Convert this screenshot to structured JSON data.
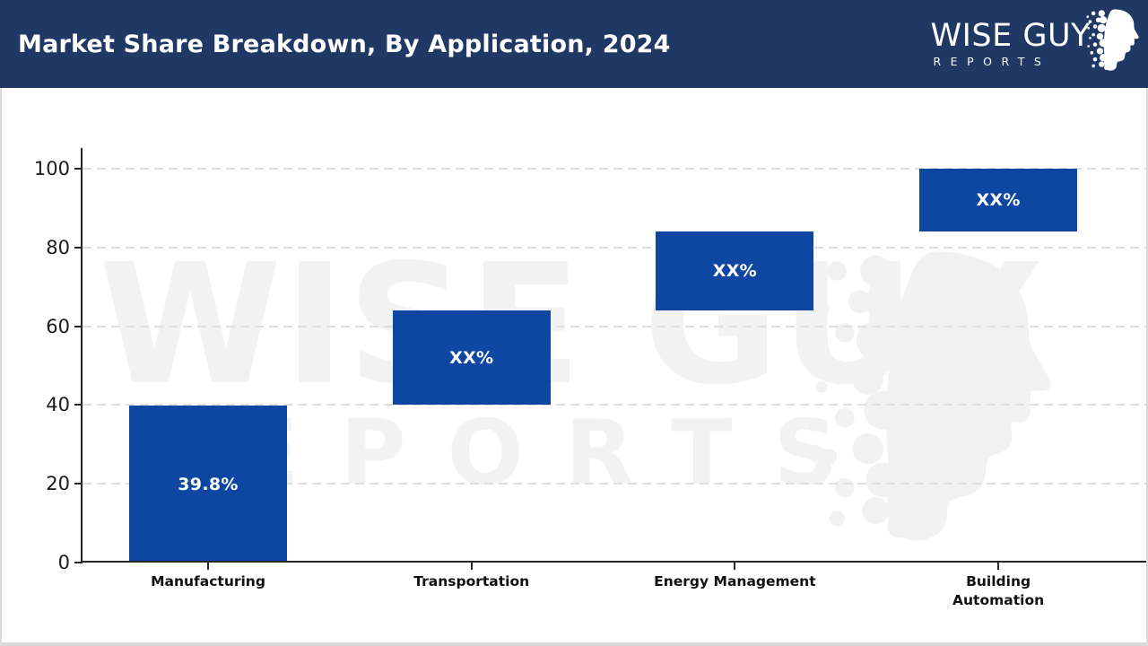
{
  "header": {
    "title": "Market Share Breakdown, By Application, 2024",
    "bg_color": "#1f3864",
    "logo": {
      "name": "WISE GUY",
      "tagline": "REPORTS"
    }
  },
  "watermark": {
    "line1": "WISE GUY",
    "line2": "REPORTS"
  },
  "chart_data": {
    "type": "bar",
    "subtype": "floating-waterfall",
    "title": "Market Share Breakdown, By Application, 2024",
    "categories": [
      "Manufacturing",
      "Transportation",
      "Energy Management",
      "Building Automation"
    ],
    "bars": [
      {
        "category": "Manufacturing",
        "start": 0,
        "end": 39.8,
        "label": "39.8%"
      },
      {
        "category": "Transportation",
        "start": 40,
        "end": 64,
        "label": "XX%"
      },
      {
        "category": "Energy Management",
        "start": 64,
        "end": 84,
        "label": "XX%"
      },
      {
        "category": "Building\nAutomation",
        "start": 84,
        "end": 100,
        "label": "XX%"
      }
    ],
    "y_ticks": [
      0,
      20,
      40,
      60,
      80,
      100
    ],
    "ylim": [
      0,
      100
    ],
    "xlabel": "",
    "ylabel": "",
    "grid": "dashed-horizontal",
    "legend": "none",
    "bar_color": "#0d47a1",
    "bar_label_color": "#ffffff",
    "axis_color": "#262626"
  }
}
